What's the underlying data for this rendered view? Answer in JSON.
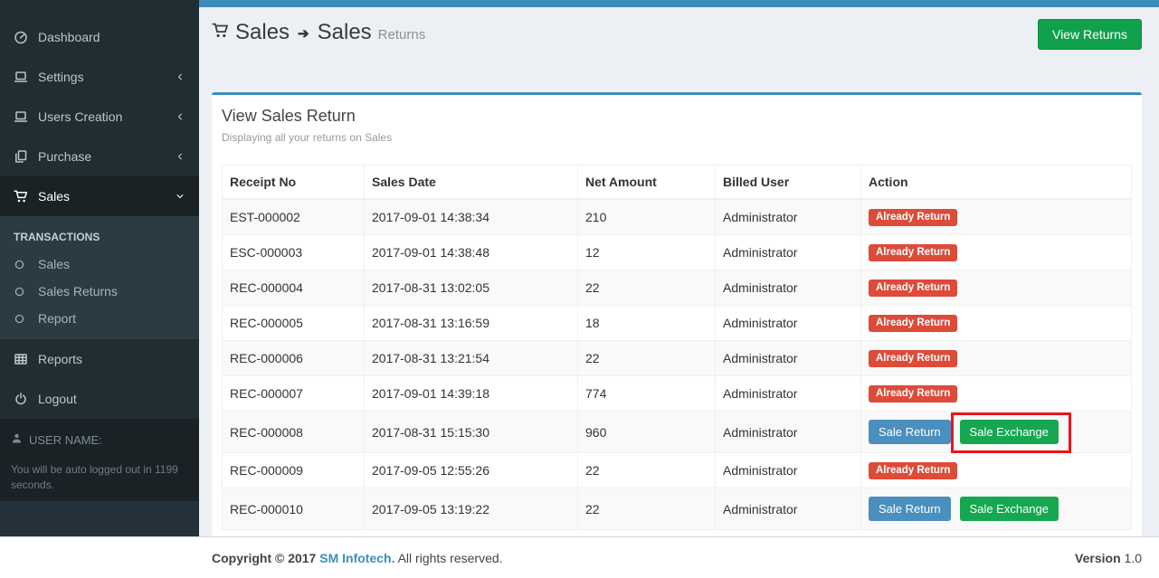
{
  "sidebar": {
    "menu_top": [
      {
        "id": "dashboard",
        "label": "Dashboard",
        "icon": "gauge-icon"
      },
      {
        "id": "settings",
        "label": "Settings",
        "icon": "laptop-icon",
        "chevron": "left"
      },
      {
        "id": "users-creation",
        "label": "Users Creation",
        "icon": "laptop-icon",
        "chevron": "left"
      },
      {
        "id": "purchase",
        "label": "Purchase",
        "icon": "copy-icon",
        "chevron": "left"
      },
      {
        "id": "sales",
        "label": "Sales",
        "icon": "cart-icon",
        "chevron": "down",
        "active": true
      }
    ],
    "submenu_header": "TRANSACTIONS",
    "submenu": [
      {
        "id": "sales",
        "label": "Sales"
      },
      {
        "id": "sales-returns",
        "label": "Sales Returns"
      },
      {
        "id": "report",
        "label": "Report"
      }
    ],
    "menu_bottom": [
      {
        "id": "reports",
        "label": "Reports",
        "icon": "table-icon"
      },
      {
        "id": "logout",
        "label": "Logout",
        "icon": "power-icon"
      }
    ],
    "user_panel": {
      "icon": "user-icon",
      "label": "USER NAME:",
      "note": "You will be auto logged out in 1199 seconds."
    }
  },
  "header": {
    "icon": "cart-icon",
    "title_primary": "Sales",
    "separator_icon": "arrow-right-icon",
    "title_secondary": "Sales",
    "title_suffix": "Returns",
    "view_returns_button": "View Returns"
  },
  "panel": {
    "title": "View Sales Return",
    "subtitle": "Displaying all your returns on Sales",
    "table": {
      "columns": [
        "Receipt No",
        "Sales Date",
        "Net Amount",
        "Billed User",
        "Action"
      ],
      "rows": [
        {
          "receipt_no": "EST-000002",
          "sales_date": "2017-09-01 14:38:34",
          "net_amount": "210",
          "billed_user": "Administrator",
          "actions": [
            {
              "type": "already_return"
            }
          ]
        },
        {
          "receipt_no": "ESC-000003",
          "sales_date": "2017-09-01 14:38:48",
          "net_amount": "12",
          "billed_user": "Administrator",
          "actions": [
            {
              "type": "already_return"
            }
          ]
        },
        {
          "receipt_no": "REC-000004",
          "sales_date": "2017-08-31 13:02:05",
          "net_amount": "22",
          "billed_user": "Administrator",
          "actions": [
            {
              "type": "already_return"
            }
          ]
        },
        {
          "receipt_no": "REC-000005",
          "sales_date": "2017-08-31 13:16:59",
          "net_amount": "18",
          "billed_user": "Administrator",
          "actions": [
            {
              "type": "already_return"
            }
          ]
        },
        {
          "receipt_no": "REC-000006",
          "sales_date": "2017-08-31 13:21:54",
          "net_amount": "22",
          "billed_user": "Administrator",
          "actions": [
            {
              "type": "already_return"
            }
          ]
        },
        {
          "receipt_no": "REC-000007",
          "sales_date": "2017-09-01 14:39:18",
          "net_amount": "774",
          "billed_user": "Administrator",
          "actions": [
            {
              "type": "already_return"
            }
          ]
        },
        {
          "receipt_no": "REC-000008",
          "sales_date": "2017-08-31 15:15:30",
          "net_amount": "960",
          "billed_user": "Administrator",
          "actions": [
            {
              "type": "sale_return"
            },
            {
              "type": "sale_exchange",
              "highlighted": true
            }
          ]
        },
        {
          "receipt_no": "REC-000009",
          "sales_date": "2017-09-05 12:55:26",
          "net_amount": "22",
          "billed_user": "Administrator",
          "actions": [
            {
              "type": "already_return"
            }
          ]
        },
        {
          "receipt_no": "REC-000010",
          "sales_date": "2017-09-05 13:19:22",
          "net_amount": "22",
          "billed_user": "Administrator",
          "actions": [
            {
              "type": "sale_return"
            },
            {
              "type": "sale_exchange"
            }
          ]
        }
      ]
    }
  },
  "action_labels": {
    "already_return": "Already Return",
    "sale_return": "Sale Return",
    "sale_exchange": "Sale Exchange"
  },
  "annotation": {
    "type": "red-highlight-rectangle",
    "target_row": "REC-000008",
    "target_action": "sale_exchange",
    "color": "#e81717"
  },
  "footer": {
    "copyright_prefix": "Copyright © 2017",
    "company_link": "SM Infotech.",
    "copyright_suffix": "All rights reserved.",
    "version_label": "Version",
    "version_value": "1.0"
  },
  "colors": {
    "topbar_blue": "#3c8dbc",
    "panel_border_blue": "#3c8dbc",
    "sidebar_bg": "#222d32",
    "sidebar_active_bg": "#1a2226",
    "submenu_bg": "#2c3b41",
    "content_bg": "#ecf0f5",
    "badge_red": "#dd4b39",
    "button_blue": "#4a8fbe",
    "button_green": "#16a750",
    "view_returns_green": "#0fa14c",
    "annotation_red": "#e81717",
    "link_blue": "#3c8dbc"
  }
}
